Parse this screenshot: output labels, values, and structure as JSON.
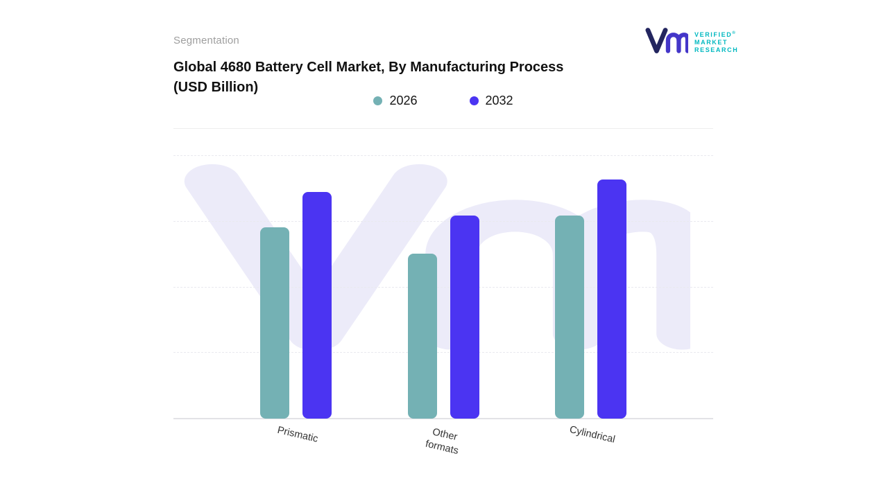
{
  "page": {
    "eyebrow": "Segmentation",
    "title_line1": "Global 4680 Battery Cell Market, By Manufacturing Process",
    "title_line2": "(USD Billion)"
  },
  "brand": {
    "name_lines": [
      "VERIFIED",
      "MARKET",
      "RESEARCH"
    ],
    "registered_mark": "®",
    "text_color": "#00b8c0",
    "glyph_color_v": "#23255f",
    "glyph_color_m": "#4436c9",
    "watermark_color": "#ecebf9"
  },
  "legend": {
    "items": [
      {
        "label": "2026",
        "color": "#74b1b4"
      },
      {
        "label": "2032",
        "color": "#4b34f2"
      }
    ]
  },
  "chart_data": {
    "type": "bar",
    "title": "Global 4680 Battery Cell Market, By Manufacturing Process (USD Billion)",
    "units": "USD Billion",
    "categories": [
      "Prismatic",
      "Other formats",
      "Cylindrical"
    ],
    "series": [
      {
        "name": "2026",
        "color": "#74b1b4",
        "values": [
          0.8,
          0.69,
          0.85
        ]
      },
      {
        "name": "2032",
        "color": "#4b34f2",
        "values": [
          0.95,
          0.85,
          1.0
        ]
      }
    ],
    "values_estimated": true,
    "values_note": "No numeric y-axis shown; values are relative bar heights normalized to tallest bar = 1.00",
    "ylim": [
      0,
      1.1
    ],
    "y_axis_labels_visible": false,
    "value_labels_visible": false,
    "gridlines": {
      "style": "dashed",
      "fractions": [
        0.25,
        0.5,
        0.75,
        1.0
      ]
    },
    "legend_position": "top-center"
  }
}
